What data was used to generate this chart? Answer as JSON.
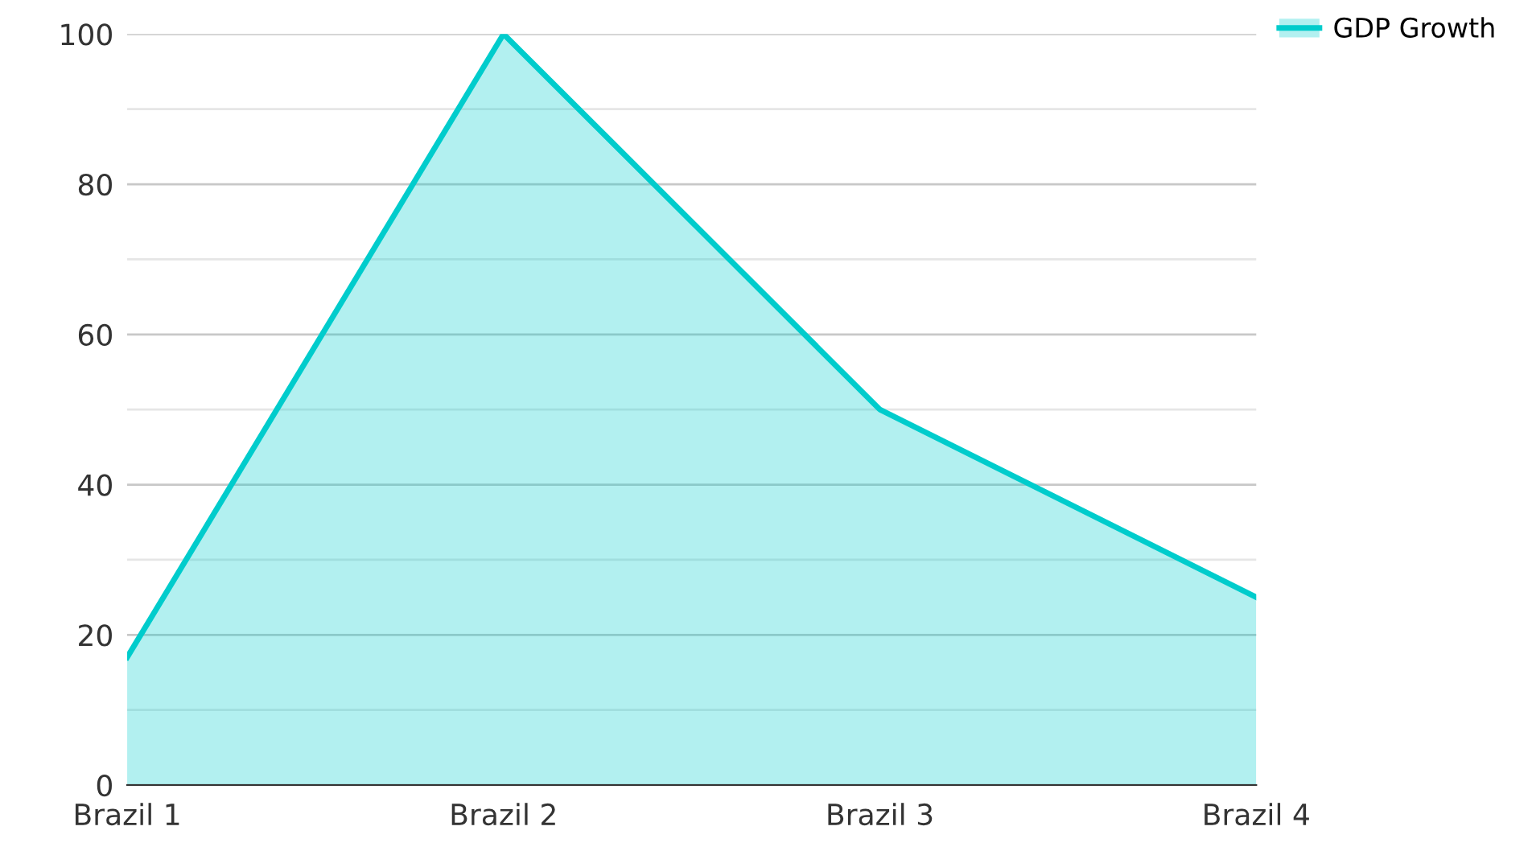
{
  "chart_data": {
    "type": "area",
    "categories": [
      "Brazil 1",
      "Brazil 2",
      "Brazil 3",
      "Brazil 4"
    ],
    "series": [
      {
        "name": "GDP Growth",
        "color": "#00cccc",
        "values": [
          17,
          100,
          50,
          25
        ]
      }
    ],
    "ylim": [
      0,
      100
    ],
    "yticks": [
      0,
      {
        "value": 10,
        "label": null
      },
      20,
      {
        "value": 30,
        "label": null
      },
      40,
      {
        "value": 50,
        "label": null
      },
      60,
      {
        "value": 70,
        "label": null
      },
      80,
      {
        "value": 90,
        "label": null
      },
      100
    ],
    "grid": "y",
    "legend": "top right"
  }
}
